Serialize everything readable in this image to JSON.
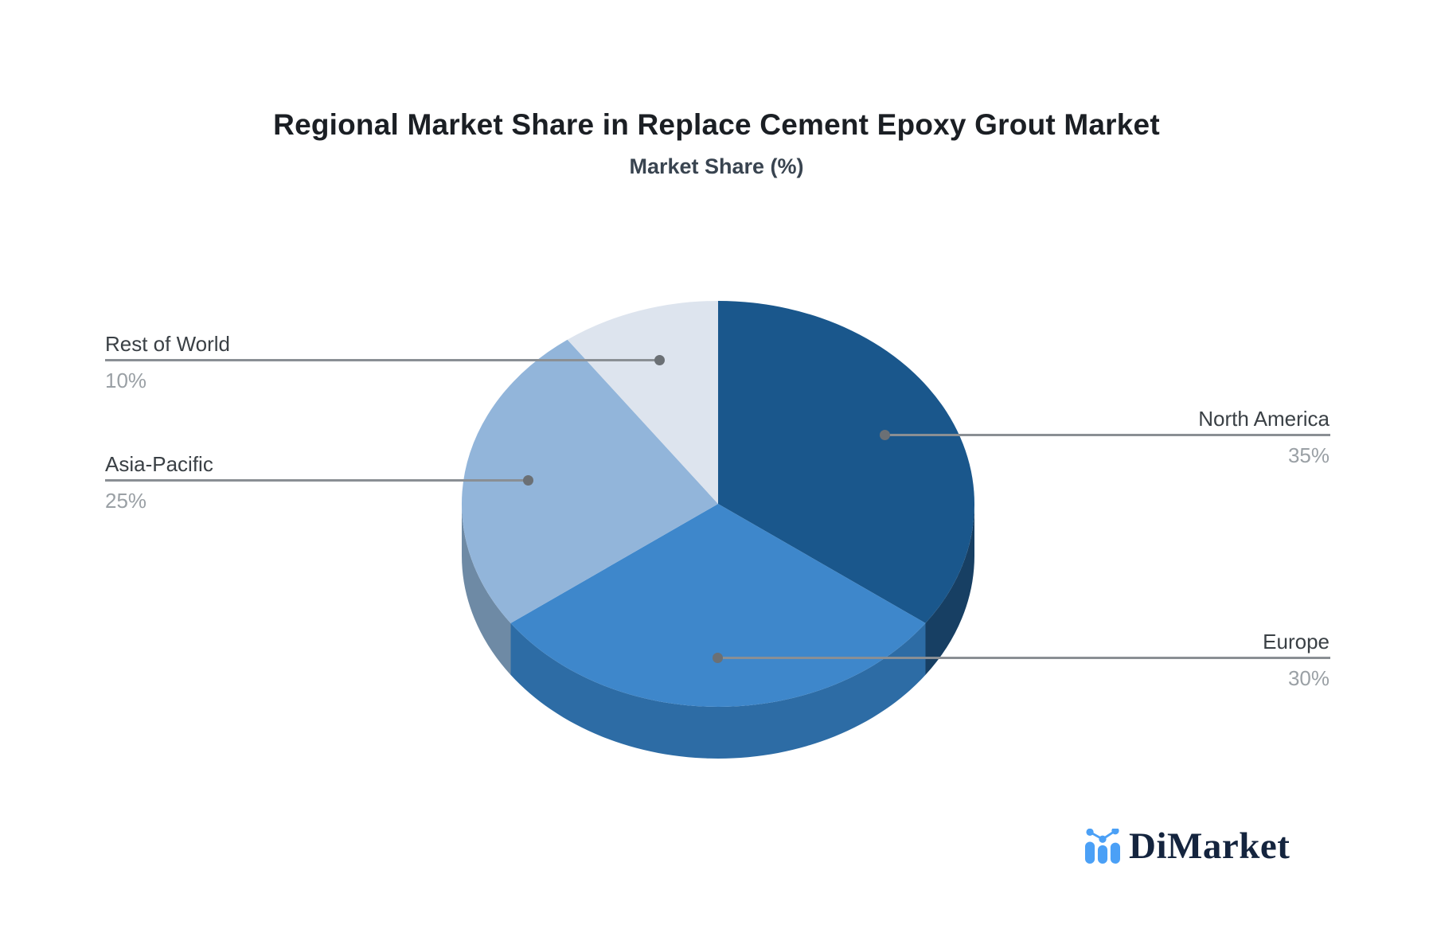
{
  "header": {
    "title": "Regional Market Share in Replace Cement Epoxy Grout Market",
    "subtitle": "Market Share (%)"
  },
  "chart_data": {
    "type": "pie",
    "title": "Regional Market Share in Replace Cement Epoxy Grout Market",
    "subtitle": "Market Share (%)",
    "unit": "%",
    "style": "3d",
    "start_angle": "12-o-clock",
    "direction": "clockwise",
    "legend_position": "none",
    "categories": [
      "North America",
      "Europe",
      "Asia-Pacific",
      "Rest of World"
    ],
    "values": [
      35,
      30,
      25,
      10
    ],
    "slices": [
      {
        "label": "North America",
        "value": 35,
        "percent_label": "35%",
        "color": "#1A578C",
        "side_color": "#173F63",
        "callout_side": "right"
      },
      {
        "label": "Europe",
        "value": 30,
        "percent_label": "30%",
        "color": "#3E87CB",
        "side_color": "#2D6CA5",
        "callout_side": "right"
      },
      {
        "label": "Asia-Pacific",
        "value": 25,
        "percent_label": "25%",
        "color": "#92B5DA",
        "side_color": "#6E8AA5",
        "callout_side": "left"
      },
      {
        "label": "Rest of World",
        "value": 10,
        "percent_label": "10%",
        "color": "#DDE4EE",
        "side_color": "#B9C4D6",
        "callout_side": "left"
      }
    ],
    "callout_line_color": "#8a8f94",
    "callout_dot_color": "#6b7075",
    "label_text_color": "#3a4045",
    "percent_text_color": "#9aa0a5"
  },
  "branding": {
    "name": "DiMarket",
    "icon": "mini-bar-line-chart",
    "icon_color": "#4BA0F6",
    "text_color": "#14243e"
  }
}
